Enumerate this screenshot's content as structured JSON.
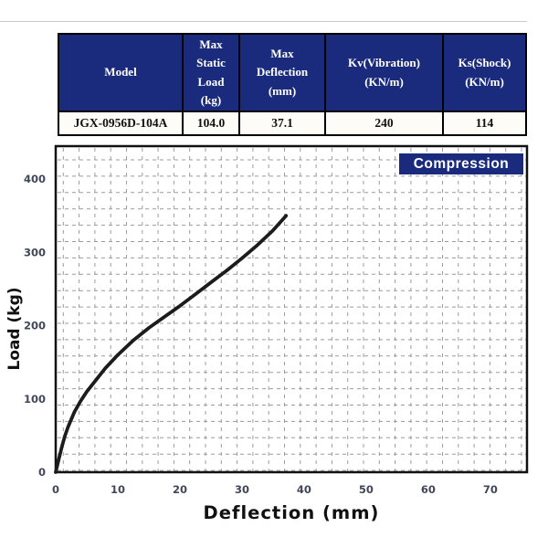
{
  "colors": {
    "navy": "#1a2b7e",
    "grid": "#9b9b9b",
    "curve": "#1c1c1c",
    "tick_text": "#41465a",
    "plot_border": "#111111"
  },
  "table": {
    "headers": [
      "Model",
      "Max\nStatic\nLoad\n(kg)",
      "Max\nDeflection\n(mm)",
      "Kv(Vibration)\n(KN/m)",
      "Ks(Shock)\n(KN/m)"
    ],
    "row": [
      "JGX-0956D-104A",
      "104.0",
      "37.1",
      "240",
      "114"
    ]
  },
  "chart_data": {
    "type": "line",
    "legend": "Compression",
    "xlabel": "Deflection (mm)",
    "ylabel": "Load (kg)",
    "xlim": [
      0,
      75.9
    ],
    "ylim": [
      0,
      445
    ],
    "x_ticks": [
      0,
      10,
      20,
      30,
      40,
      50,
      60,
      70
    ],
    "y_ticks": [
      0,
      100,
      200,
      300,
      400
    ],
    "grid": true,
    "series": [
      {
        "name": "Compression",
        "x": [
          0,
          0.5,
          1,
          1.5,
          2,
          3,
          4,
          5,
          6.5,
          8,
          10,
          12.5,
          15,
          17.5,
          20,
          22.5,
          25,
          27.5,
          30,
          32.5,
          35,
          37.1
        ],
        "y": [
          0,
          18,
          35,
          50,
          62,
          82,
          97,
          110,
          126,
          142,
          160,
          180,
          197,
          212,
          227,
          243,
          259,
          275,
          292,
          310,
          330,
          350
        ]
      }
    ]
  }
}
